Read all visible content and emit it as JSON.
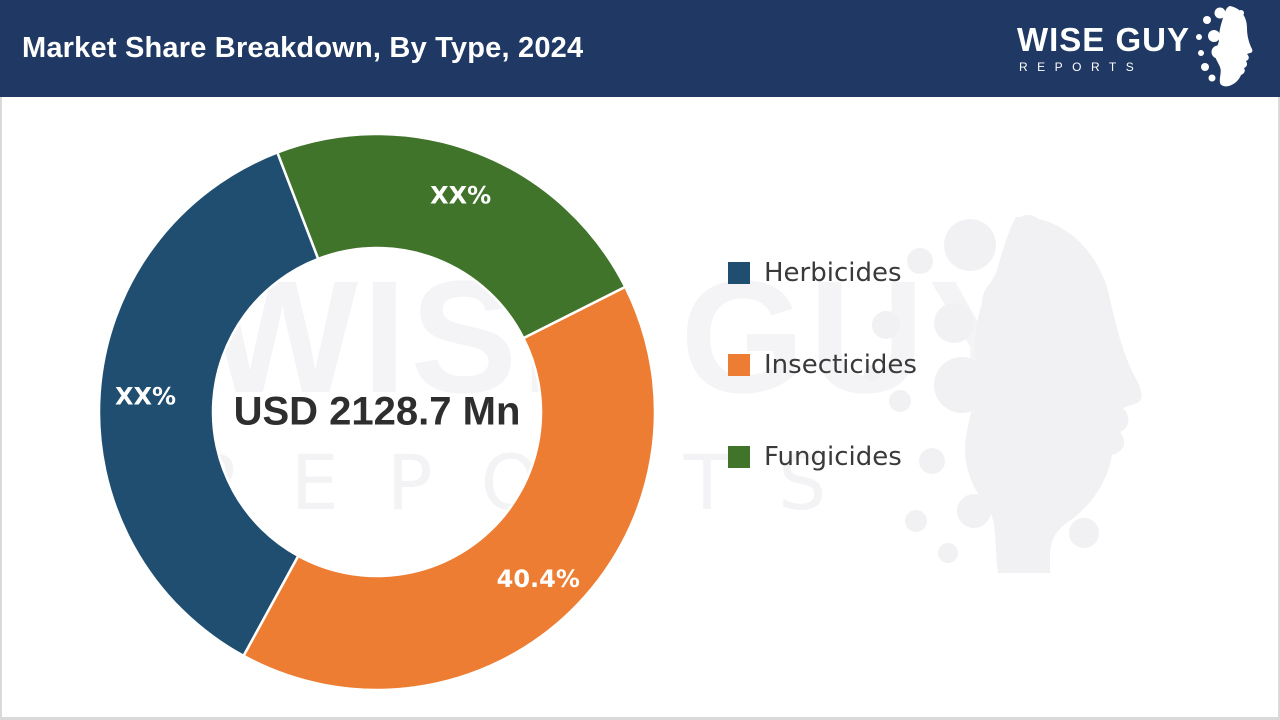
{
  "header": {
    "title": "Market Share Breakdown, By Type, 2024",
    "logo": {
      "brand": "WISE GUY",
      "sub": "REPORTS"
    }
  },
  "chart_data": {
    "type": "pie",
    "subtype": "donut",
    "title": "Market Share Breakdown, By Type, 2024",
    "center_label": "USD 2128.7 Mn",
    "legend_position": "right",
    "start_angle_deg": 111,
    "direction": "counterclockwise",
    "segments": [
      {
        "label": "Herbicides",
        "display_value": "XX%",
        "value_pct": 36.2,
        "color": "#1f4e70"
      },
      {
        "label": "Insecticides",
        "display_value": "40.4%",
        "value_pct": 40.4,
        "color": "#ed7d33"
      },
      {
        "label": "Fungicides",
        "display_value": "XX%",
        "value_pct": 23.4,
        "color": "#41742b"
      }
    ]
  },
  "watermark": {
    "brand": "WISE GUY",
    "sub": "REPORTS"
  },
  "colors": {
    "header_bg": "#1f3864",
    "center_text": "#2e2e2e",
    "legend_text": "#3a3a3a",
    "watermark_gray": "#f2f2f4",
    "border": "#d9d9d9"
  }
}
